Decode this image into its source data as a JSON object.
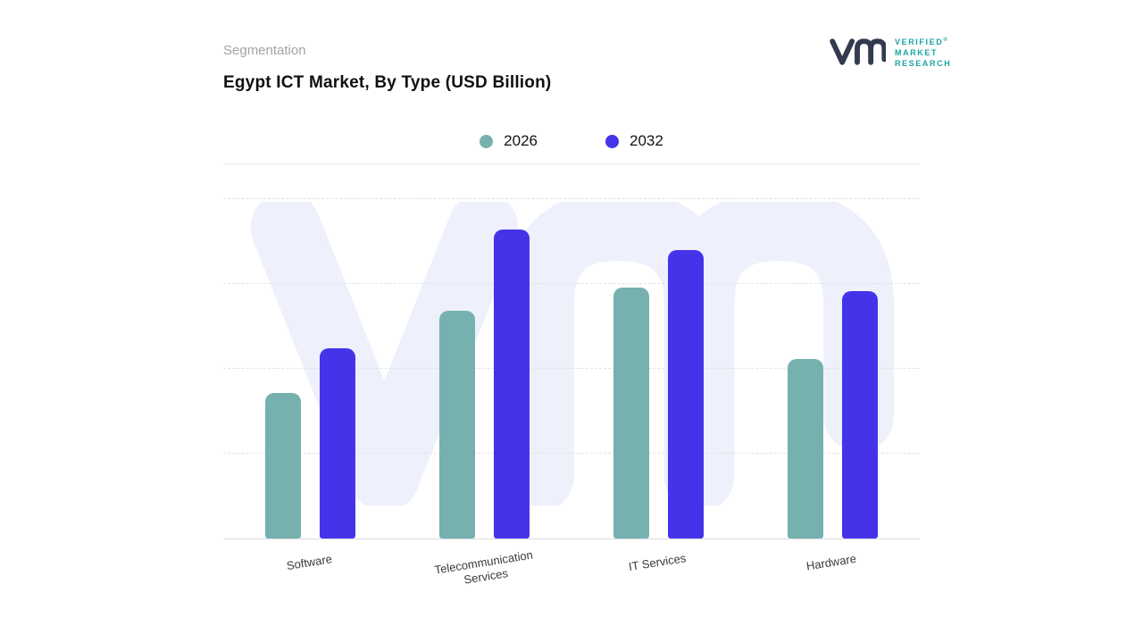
{
  "header": {
    "segmentation_label": "Segmentation",
    "logo": {
      "lines": [
        "VERIFIED",
        "MARKET",
        "RESEARCH"
      ],
      "registered_mark": "®"
    }
  },
  "chart_data": {
    "type": "bar",
    "title": "Egypt ICT Market, By Type (USD Billion)",
    "categories": [
      "Software",
      "Telecommunication Services",
      "IT Services",
      "Hardware"
    ],
    "series": [
      {
        "name": "2026",
        "color": "#76b1af",
        "values": [
          4.3,
          6.7,
          7.4,
          5.3
        ]
      },
      {
        "name": "2032",
        "color": "#4533ea",
        "values": [
          5.6,
          9.1,
          8.5,
          7.3
        ]
      }
    ],
    "xlabel": "",
    "ylabel": "",
    "ylim": [
      0,
      10
    ],
    "y_axis_tick_labels_visible": false,
    "grid": "horizontal-dashed",
    "legend_position": "top-center",
    "watermark_text": "vm",
    "colors": {
      "watermark": "#eef0fb",
      "gridline": "#e2e2e9",
      "logo_text_teal": "#1ba3a3",
      "logo_mark_dark": "#343a4e"
    }
  }
}
